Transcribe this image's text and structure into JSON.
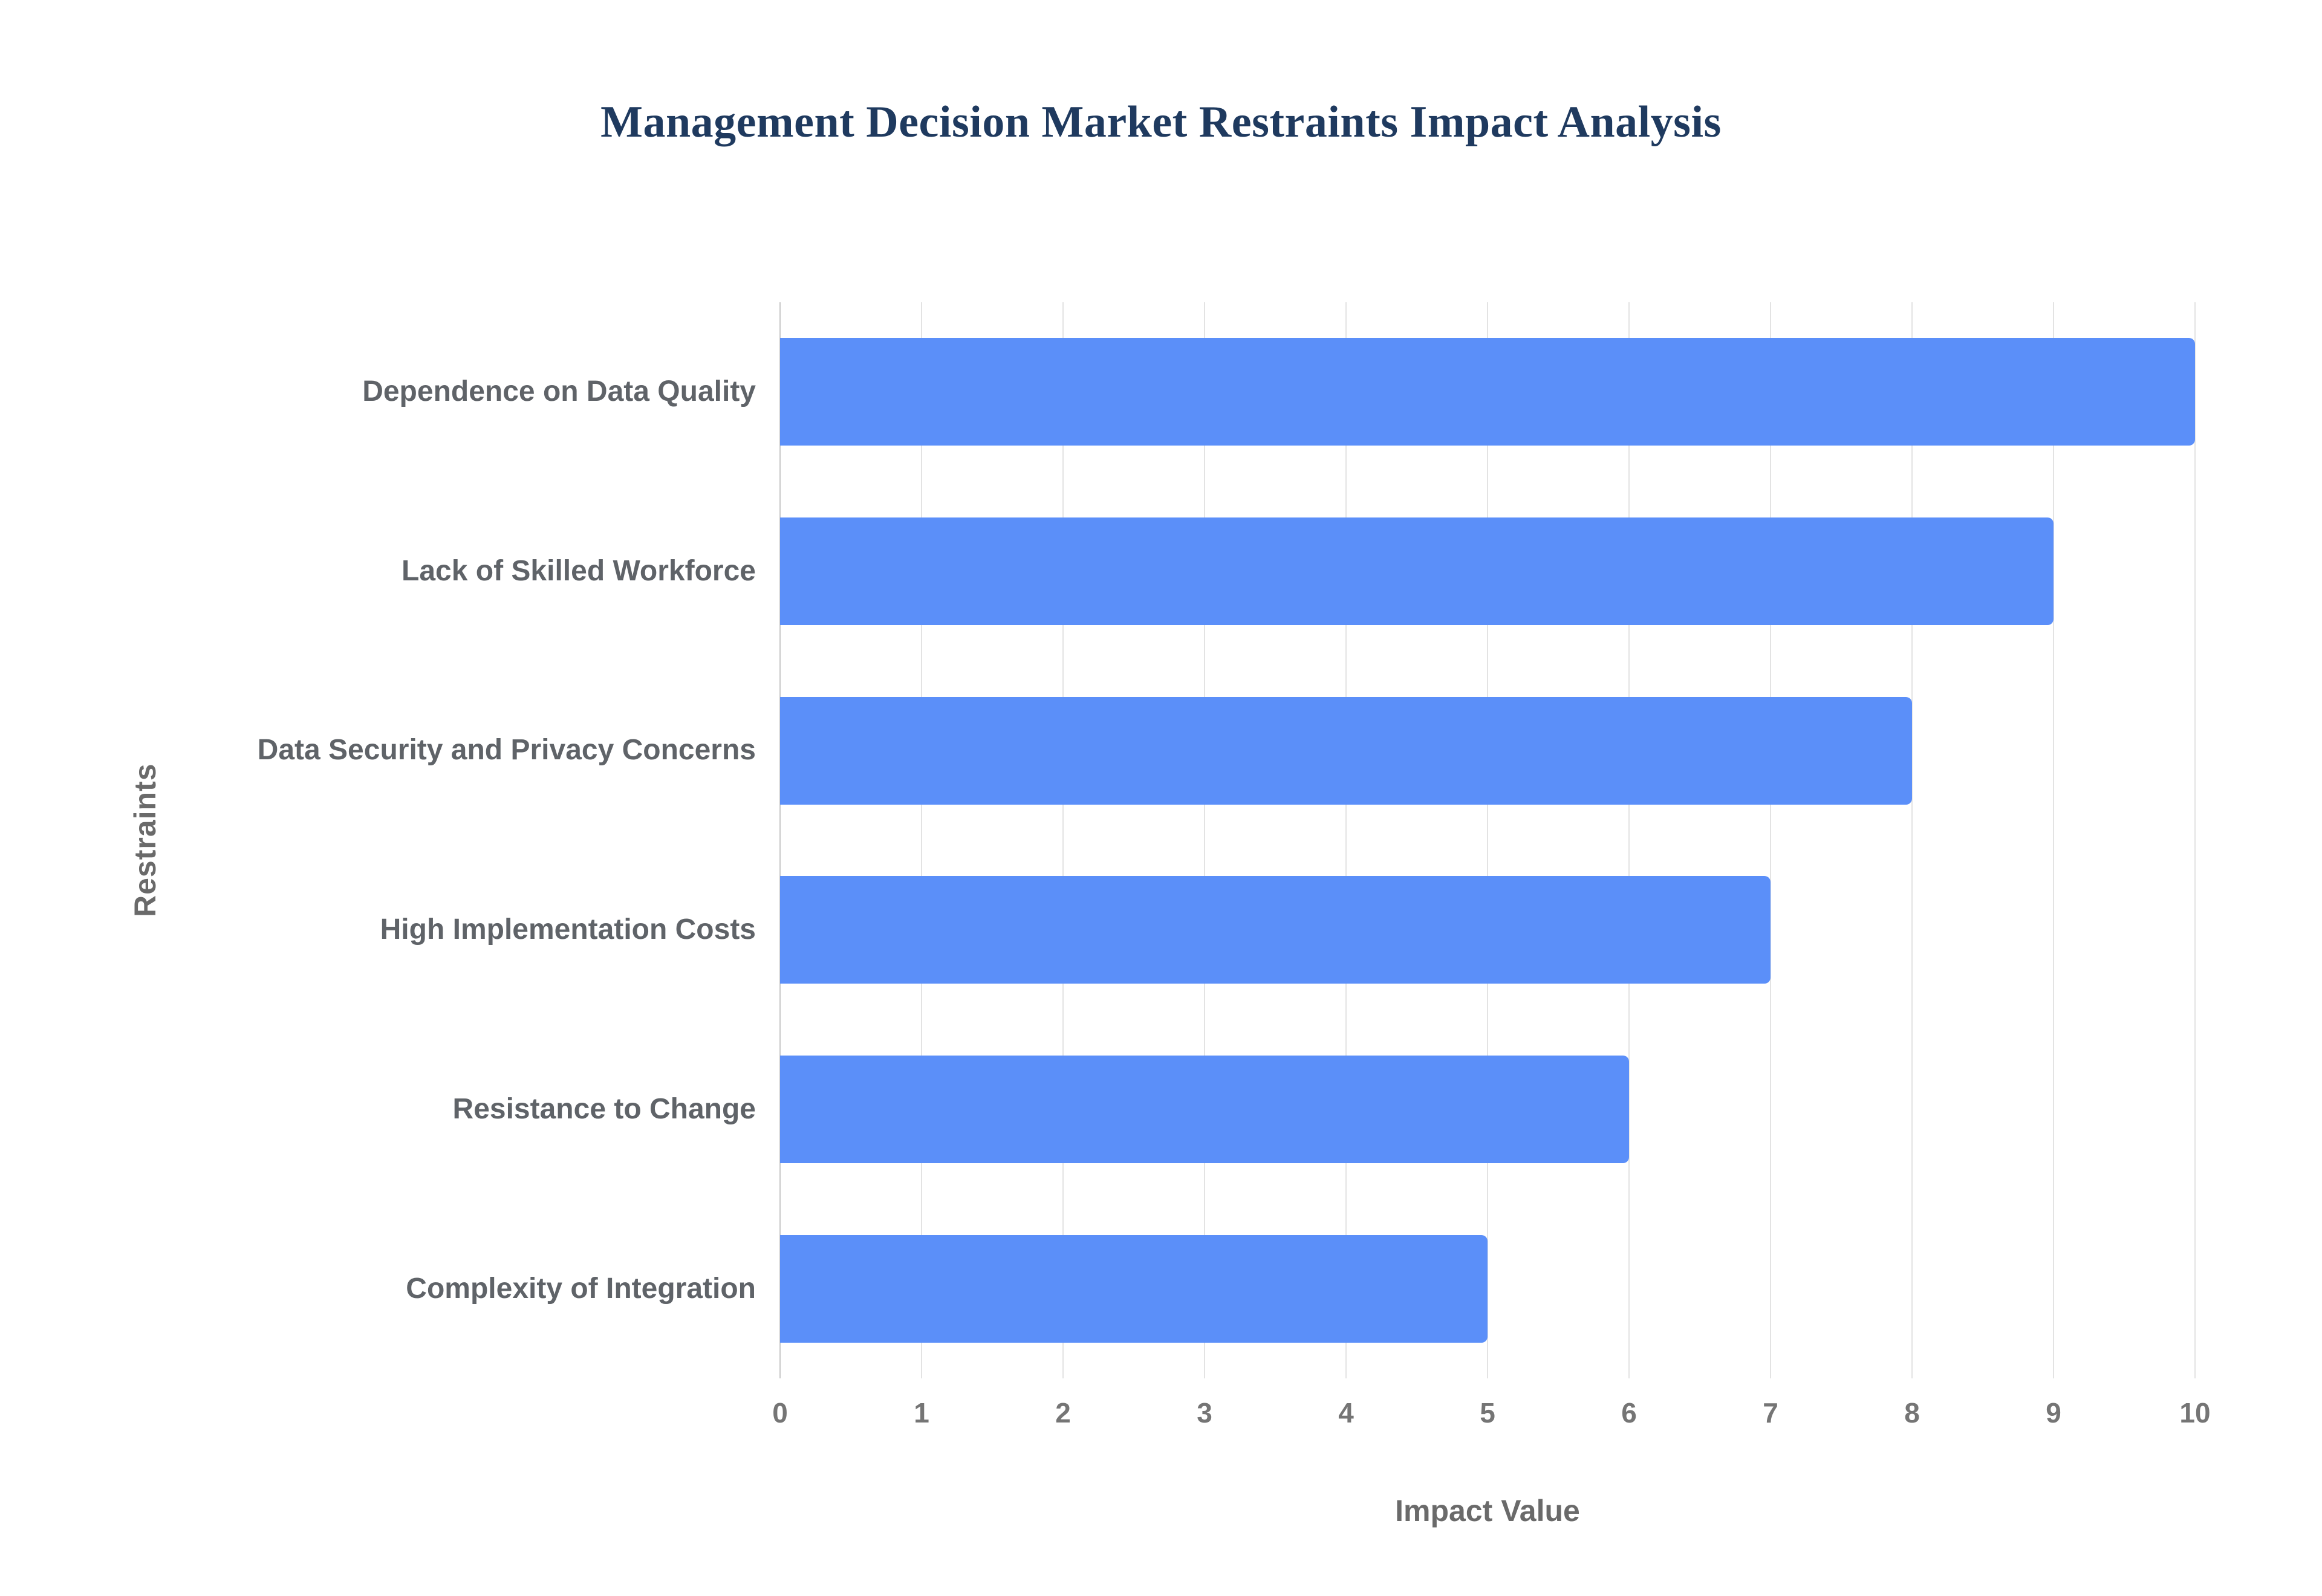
{
  "chart_data": {
    "type": "bar",
    "orientation": "horizontal",
    "title": "Management Decision Market Restraints Impact Analysis",
    "categories": [
      "Dependence on Data Quality",
      "Lack of Skilled Workforce",
      "Data Security and Privacy Concerns",
      "High Implementation Costs",
      "Resistance to Change",
      "Complexity of Integration"
    ],
    "values": [
      10,
      9,
      8,
      7,
      6,
      5
    ],
    "xlabel": "Impact Value",
    "ylabel": "Restraints",
    "xlim": [
      0,
      10
    ],
    "xticks": [
      0,
      1,
      2,
      3,
      4,
      5,
      6,
      7,
      8,
      9,
      10
    ],
    "grid": "vertical",
    "legend": "none"
  },
  "colors": {
    "bar": "#5B8FF9",
    "title": "#1F3A5F",
    "category_label": "#5F6368",
    "tick_label": "#757575",
    "axis_title": "#6A6A6A",
    "gridline": "#E3E3E3",
    "axis_line": "#C9C9C9",
    "background": "#FFFFFF"
  }
}
